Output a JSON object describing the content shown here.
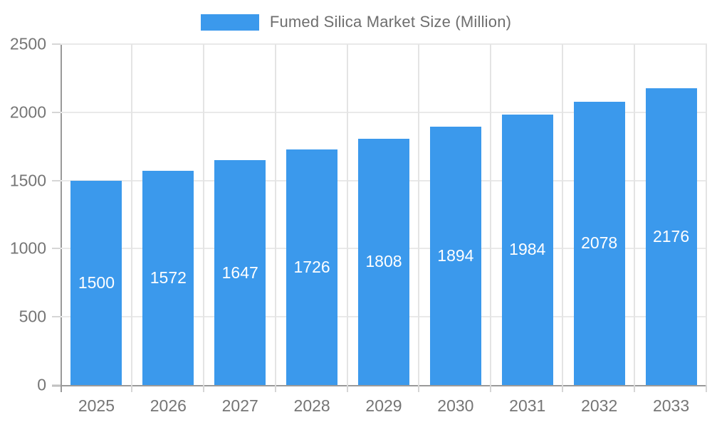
{
  "legend": {
    "label": "Fumed Silica Market Size (Million)",
    "swatch_color": "#3b99ec"
  },
  "chart_data": {
    "type": "bar",
    "title": "",
    "xlabel": "",
    "ylabel": "",
    "categories": [
      "2025",
      "2026",
      "2027",
      "2028",
      "2029",
      "2030",
      "2031",
      "2032",
      "2033"
    ],
    "values": [
      1500,
      1572,
      1647,
      1726,
      1808,
      1894,
      1984,
      2078,
      2176
    ],
    "series_name": "Fumed Silica Market Size (Million)",
    "ylim": [
      0,
      2500
    ],
    "yticks": [
      0,
      500,
      1000,
      1500,
      2000,
      2500
    ],
    "grid": true,
    "legend_position": "top",
    "value_labels": "inside-center",
    "colors": {
      "bar": "#3b99ec",
      "value_label": "#ffffff",
      "axis_line": "#9a9a9a",
      "h_gridline": "#e9e9e9",
      "v_gridline": "#e4e4e4",
      "tick": "#d6d6d6",
      "tick_label": "#757575",
      "legend_label": "#6e6e6e"
    }
  }
}
